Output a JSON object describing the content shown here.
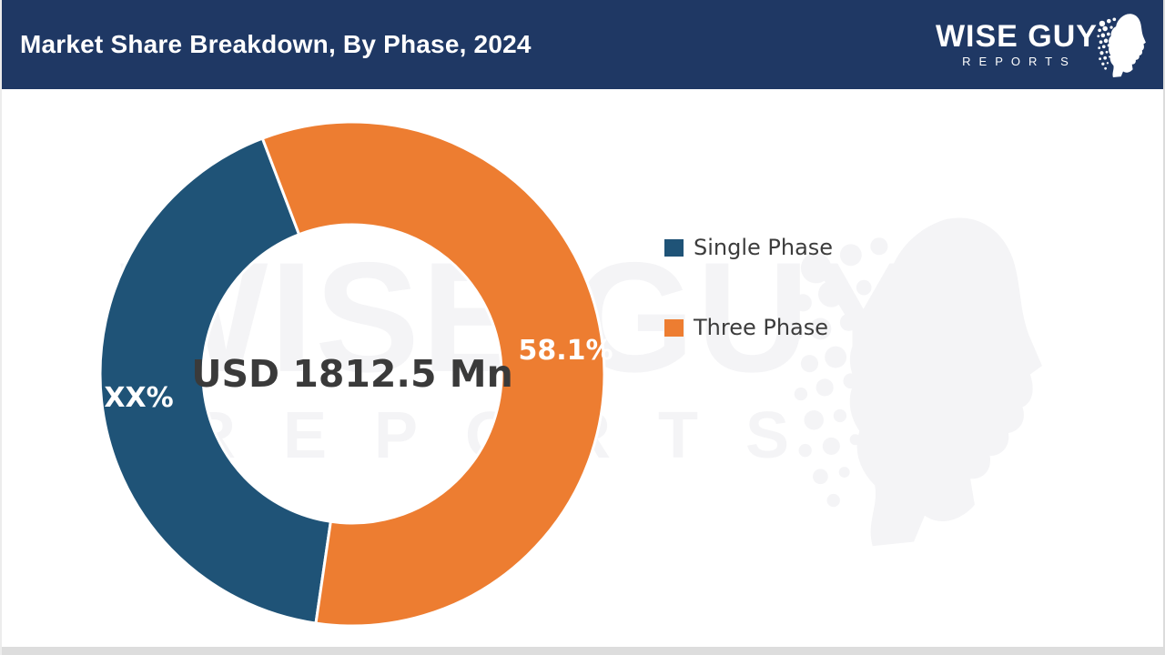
{
  "header": {
    "title": "Market Share Breakdown, By Phase, 2024",
    "logo": {
      "brand": "WISE GUY",
      "sub": "REPORTS"
    }
  },
  "watermark": {
    "line1": "WISE GUY",
    "line2": "REPORTS"
  },
  "chart_data": {
    "type": "pie",
    "subtype": "donut",
    "title": "Market Share Breakdown, By Phase, 2024",
    "center_label": "USD 1812.5 Mn",
    "total": 100,
    "start_angle_deg_clockwise_from_top": 188.3,
    "donut_hole_ratio": 0.59,
    "legend_position": "right",
    "series": [
      {
        "name": "Single Phase",
        "value": 41.9,
        "display_label": "XX%",
        "color": "#1f5377"
      },
      {
        "name": "Three Phase",
        "value": 58.1,
        "display_label": "58.1%",
        "color": "#ed7d31"
      }
    ]
  },
  "colors": {
    "header_bg": "#1f3864",
    "watermark": "#f4f4f6",
    "bottom_strip": "#dddddd",
    "center_text": "#3a3a3a",
    "legend_text": "#3c3c3c"
  }
}
